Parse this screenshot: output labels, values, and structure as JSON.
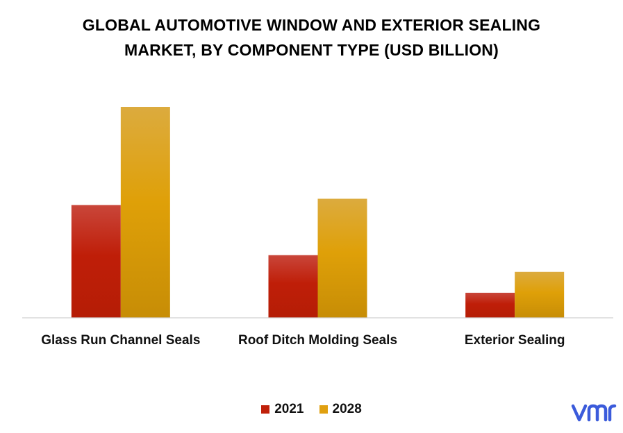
{
  "chart_data": {
    "type": "bar",
    "title_lines": [
      "GLOBAL AUTOMOTIVE WINDOW AND EXTERIOR SEALING",
      "MARKET, BY COMPONENT TYPE (USD BILLION)"
    ],
    "categories": [
      "Glass Run Channel Seals",
      "Roof Ditch Molding Seals",
      "Exterior Sealing"
    ],
    "series": [
      {
        "name": "2021",
        "values": [
          5.4,
          3.0,
          1.2
        ],
        "color": "#C0200A"
      },
      {
        "name": "2028",
        "values": [
          10.1,
          5.7,
          2.2
        ],
        "color": "#E0A010"
      }
    ],
    "ylim": [
      0,
      10.1
    ],
    "grid": false,
    "legend_position": "bottom-center",
    "xlabel": "",
    "ylabel": ""
  },
  "logo": {
    "icon": "vmr-logo-icon",
    "color": "#3b5bdb"
  }
}
